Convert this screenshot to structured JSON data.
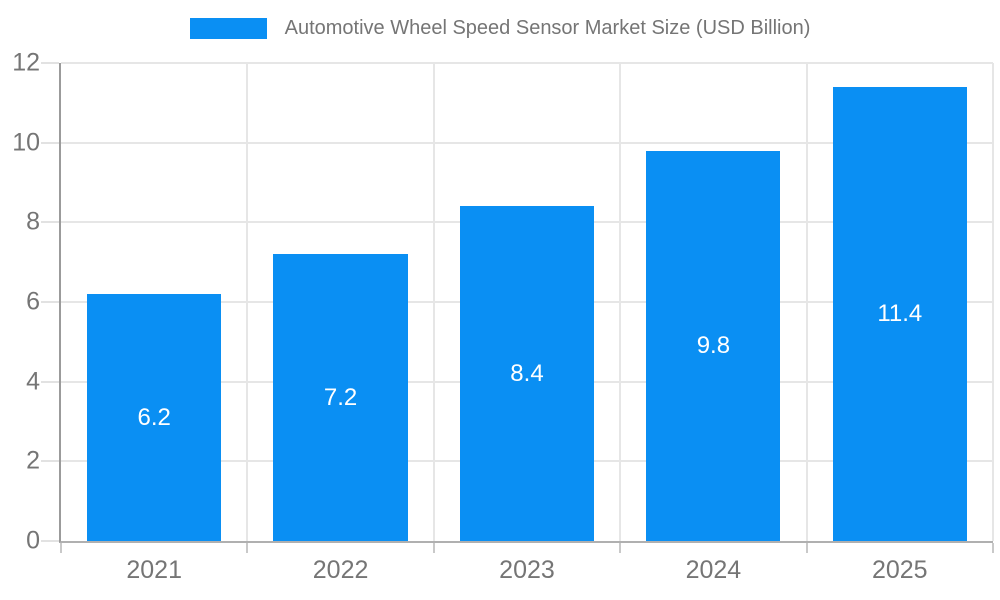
{
  "legend": {
    "label": "Automotive Wheel Speed Sensor Market Size (USD Billion)"
  },
  "chart_data": {
    "type": "bar",
    "title": "Automotive Wheel Speed Sensor Market Size (USD Billion)",
    "categories": [
      "2021",
      "2022",
      "2023",
      "2024",
      "2025"
    ],
    "values": [
      6.2,
      7.2,
      8.4,
      9.8,
      11.4
    ],
    "value_labels": [
      "6.2",
      "7.2",
      "8.4",
      "9.8",
      "11.4"
    ],
    "xlabel": "",
    "ylabel": "",
    "ylim": [
      0,
      12
    ],
    "ytick_step": 2,
    "yticks": [
      0,
      2,
      4,
      6,
      8,
      10,
      12
    ],
    "grid": "on",
    "legend_position": "top",
    "bar_color": "#0a8ff3",
    "bar_label_color": "#ffffff",
    "axis_text_color": "#757575",
    "gridline_color": "#e6e6e6"
  }
}
